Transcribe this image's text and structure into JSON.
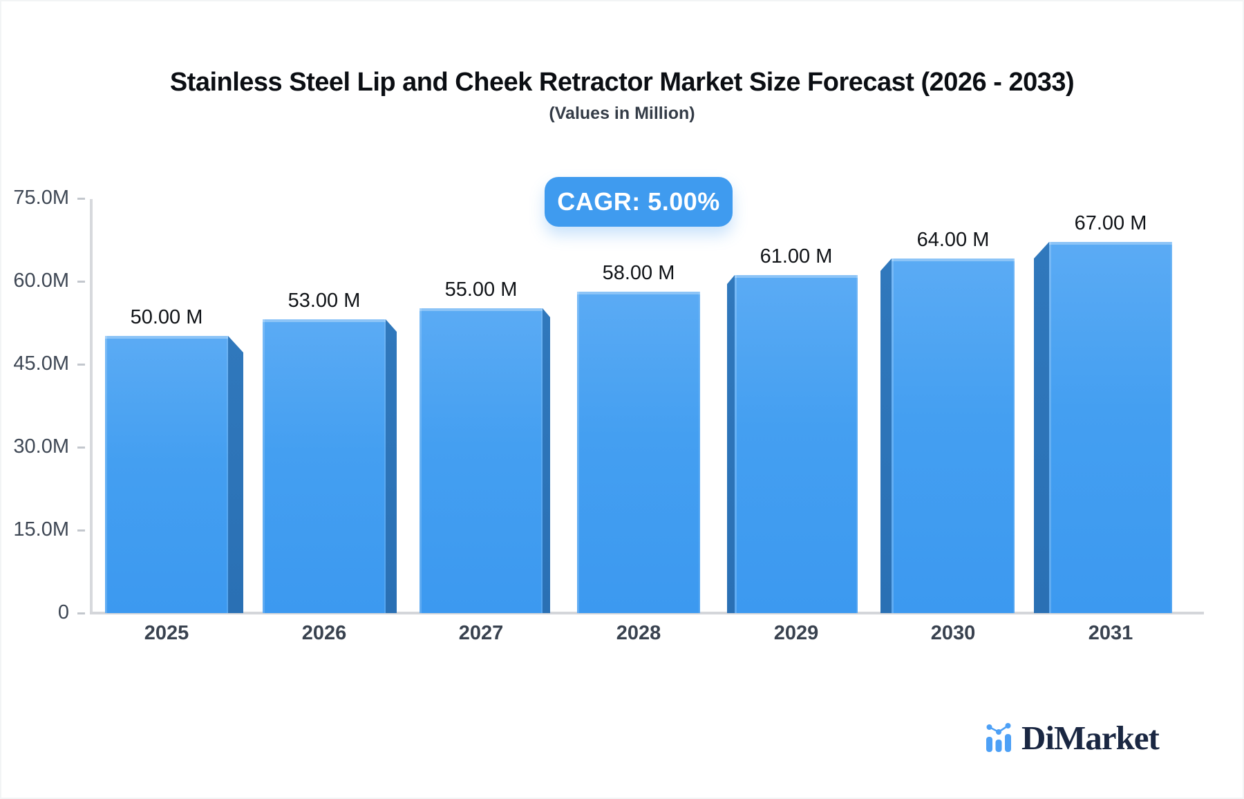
{
  "header": {
    "title": "Stainless Steel Lip and Cheek Retractor Market Size Forecast (2026 - 2033)",
    "subtitle": "(Values in Million)"
  },
  "cagr_badge": {
    "label": "CAGR: 5.00%",
    "background": "#3f9bef",
    "text_color": "#ffffff"
  },
  "chart_data": {
    "type": "bar",
    "title": "Stainless Steel Lip and Cheek Retractor Market Size Forecast (2026 - 2033)",
    "subtitle": "(Values in Million)",
    "categories": [
      "2025",
      "2026",
      "2027",
      "2028",
      "2029",
      "2030",
      "2031"
    ],
    "values": [
      50,
      53,
      55,
      58,
      61,
      64,
      67
    ],
    "value_labels": [
      "50.00 M",
      "53.00 M",
      "55.00 M",
      "58.00 M",
      "61.00 M",
      "64.00 M",
      "67.00 M"
    ],
    "y_ticks": [
      {
        "label": "75.0M",
        "value": 75
      },
      {
        "label": "60.0M",
        "value": 60
      },
      {
        "label": "45.0M",
        "value": 45
      },
      {
        "label": "30.0M",
        "value": 30
      },
      {
        "label": "15.0M",
        "value": 15
      },
      {
        "label": "0",
        "value": 0
      }
    ],
    "ylim": [
      0,
      75
    ],
    "grid": false,
    "legend_position": "none",
    "annotation": "CAGR: 5.00%",
    "bar_color": "#42a0f2",
    "bar_side_color": "#2b72b7"
  },
  "logo": {
    "name": "DiMarket",
    "icon": "bar-line-chart-icon",
    "icon_color": "#4da0f6",
    "text_color": "#1a2742"
  }
}
